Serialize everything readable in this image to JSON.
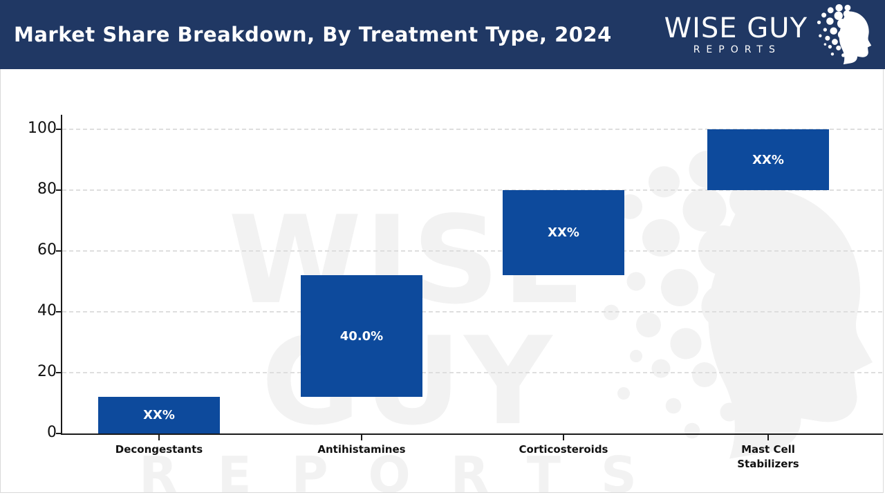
{
  "header": {
    "title": "Market Share Breakdown, By Treatment Type, 2024",
    "logo": {
      "line1": "WISE GUY",
      "line2": "REPORTS"
    }
  },
  "watermark": {
    "line1": "WISE GUY",
    "line2": "REPORTS"
  },
  "colors": {
    "header_bg": "#203864",
    "bar": "#0d4a9c",
    "grid": "#dedede",
    "axis": "#1a1a1a",
    "watermark": "#f2f2f2",
    "bar_label": "#ffffff"
  },
  "chart_data": {
    "type": "bar",
    "subtype": "floating-segment-waterfall",
    "title": "Market Share Breakdown, By Treatment Type, 2024",
    "categories": [
      "Decongestants",
      "Antihistamines",
      "Corticosteroids",
      "Mast Cell Stabilizers"
    ],
    "bars": [
      {
        "category": "Decongestants",
        "start": 0,
        "end": 12,
        "label": "XX%"
      },
      {
        "category": "Antihistamines",
        "start": 12,
        "end": 52,
        "label": "40.0%"
      },
      {
        "category": "Corticosteroids",
        "start": 52,
        "end": 80,
        "label": "XX%"
      },
      {
        "category": "Mast Cell Stabilizers",
        "start": 80,
        "end": 100,
        "label": "XX%"
      }
    ],
    "ylim": [
      0,
      100
    ],
    "yticks": [
      0,
      20,
      40,
      60,
      80,
      100
    ],
    "xlabel": "",
    "ylabel": "",
    "grid": "horizontal-dashed",
    "legend": "none"
  }
}
